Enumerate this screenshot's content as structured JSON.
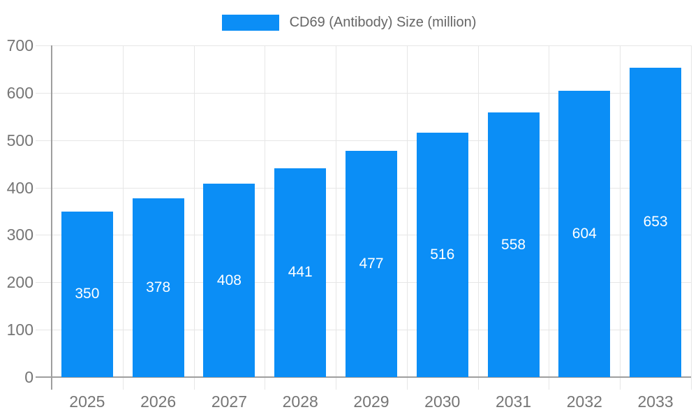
{
  "legend": {
    "label": "CD69 (Antibody) Size (million)"
  },
  "chart_data": {
    "type": "bar",
    "title": "CD69 (Antibody) Size (million)",
    "categories": [
      "2025",
      "2026",
      "2027",
      "2028",
      "2029",
      "2030",
      "2031",
      "2032",
      "2033"
    ],
    "values": [
      350,
      378,
      408,
      441,
      477,
      516,
      558,
      604,
      653
    ],
    "xlabel": "",
    "ylabel": "",
    "ylim": [
      0,
      700
    ],
    "yticks": [
      0,
      100,
      200,
      300,
      400,
      500,
      600,
      700
    ],
    "grid": true,
    "legend_position": "top-center",
    "value_labels": "inside-center",
    "colors": {
      "bar": "#0b8ef6",
      "grid": "#e6e6e6",
      "axis": "#9e9e9e",
      "axis_text": "#757575",
      "legend_text": "#666666",
      "value_label_text": "#ffffff",
      "background": "#ffffff"
    }
  }
}
